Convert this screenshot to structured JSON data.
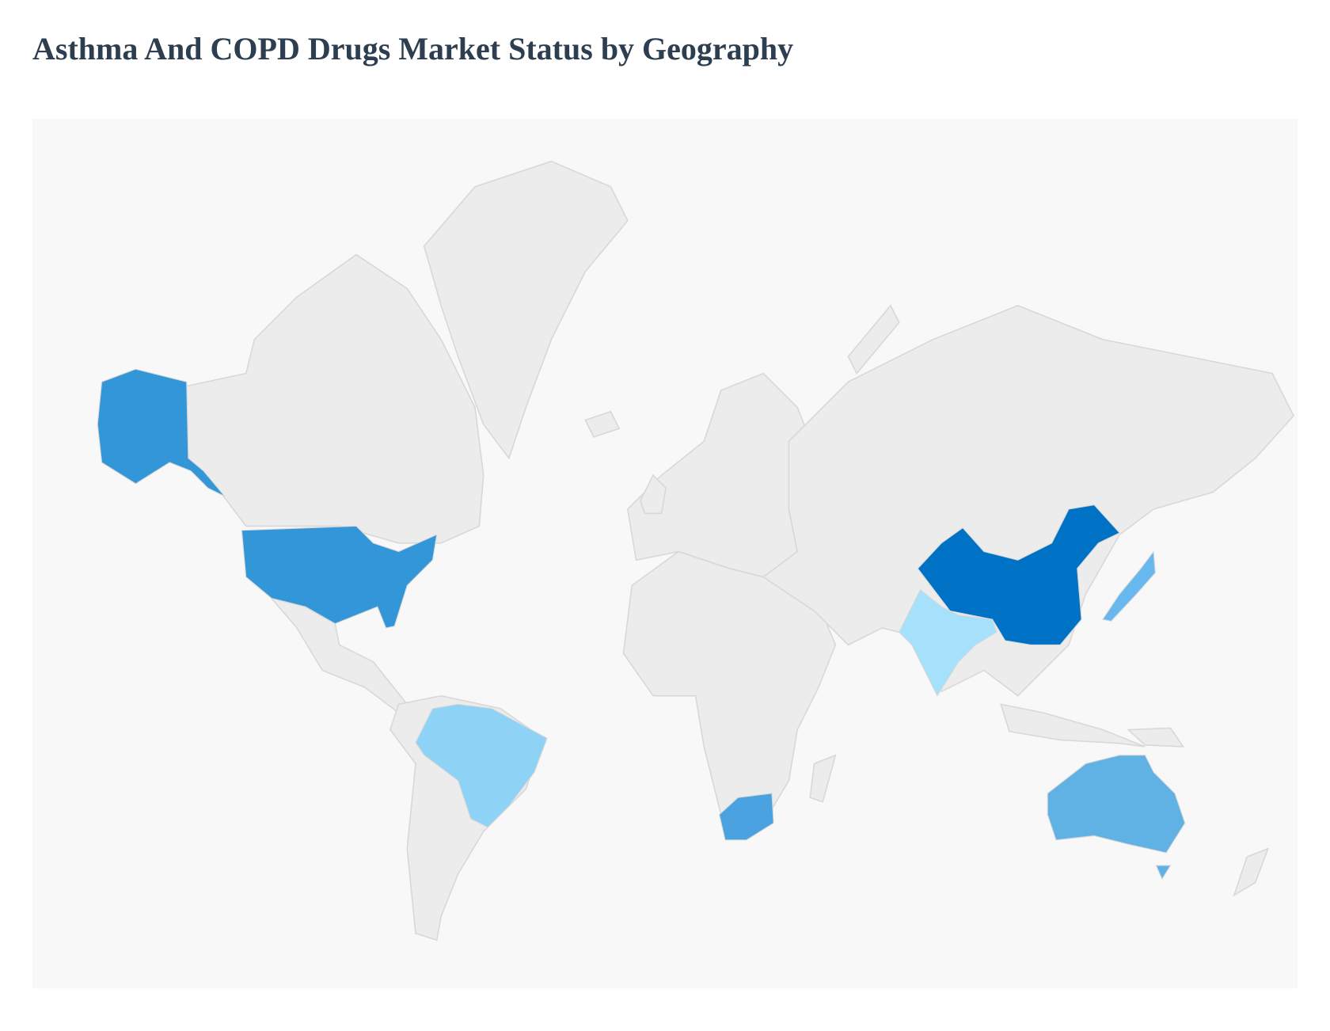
{
  "header": {
    "title": "Asthma And COPD Drugs Market Status by Geography"
  }
}
